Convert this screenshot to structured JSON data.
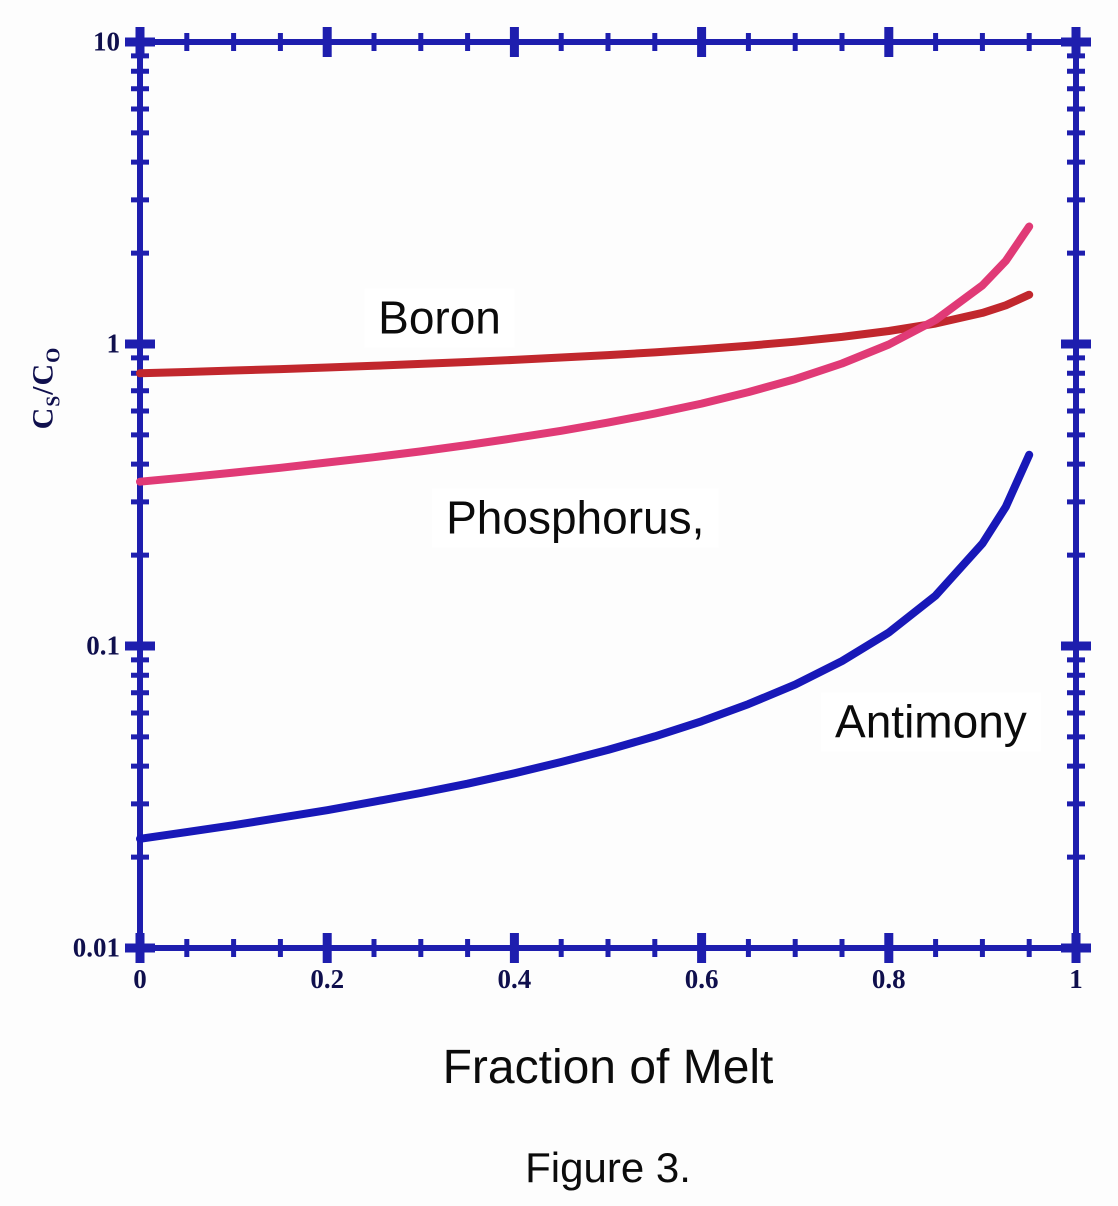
{
  "chart_data": {
    "type": "line",
    "title": "",
    "xlabel": "Fraction of Melt",
    "ylabel": "CS/CO",
    "ylabel_parts": {
      "base1": "C",
      "sub1": "S",
      "base2": "/C",
      "sub2": "O"
    },
    "caption": "Figure 3.",
    "x_scale": "linear",
    "y_scale": "log",
    "xlim": [
      0,
      1
    ],
    "ylim": [
      0.01,
      10
    ],
    "x_ticks": [
      {
        "v": 0,
        "label": "0"
      },
      {
        "v": 0.2,
        "label": "0.2"
      },
      {
        "v": 0.4,
        "label": "0.4"
      },
      {
        "v": 0.6,
        "label": "0.6"
      },
      {
        "v": 0.8,
        "label": "0.8"
      },
      {
        "v": 1,
        "label": "1"
      }
    ],
    "x_minor_step": 0.05,
    "y_ticks": [
      {
        "v": 10,
        "label": "10"
      },
      {
        "v": 1,
        "label": "1"
      },
      {
        "v": 0.1,
        "label": "0.1"
      },
      {
        "v": 0.01,
        "label": "0.01"
      }
    ],
    "grid": false,
    "axis_color": "#1e1eae",
    "tick_label_color": "#0f0f4d",
    "series": [
      {
        "name": "Boron",
        "color": "#c1272d",
        "points": [
          [
            0,
            0.8
          ],
          [
            0.05,
            0.808
          ],
          [
            0.1,
            0.817
          ],
          [
            0.15,
            0.826
          ],
          [
            0.2,
            0.836
          ],
          [
            0.25,
            0.847
          ],
          [
            0.3,
            0.859
          ],
          [
            0.35,
            0.872
          ],
          [
            0.4,
            0.886
          ],
          [
            0.45,
            0.902
          ],
          [
            0.5,
            0.919
          ],
          [
            0.55,
            0.938
          ],
          [
            0.6,
            0.961
          ],
          [
            0.65,
            0.987
          ],
          [
            0.7,
            1.018
          ],
          [
            0.75,
            1.056
          ],
          [
            0.8,
            1.104
          ],
          [
            0.85,
            1.169
          ],
          [
            0.9,
            1.268
          ],
          [
            0.925,
            1.343
          ],
          [
            0.95,
            1.456
          ]
        ]
      },
      {
        "name": "Phosphorus",
        "color": "#e03a76",
        "points": [
          [
            0,
            0.35
          ],
          [
            0.05,
            0.362
          ],
          [
            0.1,
            0.375
          ],
          [
            0.15,
            0.389
          ],
          [
            0.2,
            0.405
          ],
          [
            0.25,
            0.422
          ],
          [
            0.3,
            0.441
          ],
          [
            0.35,
            0.463
          ],
          [
            0.4,
            0.488
          ],
          [
            0.45,
            0.516
          ],
          [
            0.5,
            0.549
          ],
          [
            0.55,
            0.588
          ],
          [
            0.6,
            0.635
          ],
          [
            0.65,
            0.693
          ],
          [
            0.7,
            0.765
          ],
          [
            0.75,
            0.862
          ],
          [
            0.8,
            0.996
          ],
          [
            0.85,
            1.201
          ],
          [
            0.9,
            1.563
          ],
          [
            0.925,
            1.885
          ],
          [
            0.95,
            2.45
          ]
        ]
      },
      {
        "name": "Antimony",
        "color": "#1818b8",
        "points": [
          [
            0,
            0.023
          ],
          [
            0.05,
            0.0242
          ],
          [
            0.1,
            0.0255
          ],
          [
            0.15,
            0.027
          ],
          [
            0.2,
            0.0286
          ],
          [
            0.25,
            0.0305
          ],
          [
            0.3,
            0.0326
          ],
          [
            0.35,
            0.035
          ],
          [
            0.4,
            0.0379
          ],
          [
            0.45,
            0.0413
          ],
          [
            0.5,
            0.0453
          ],
          [
            0.55,
            0.0502
          ],
          [
            0.6,
            0.0563
          ],
          [
            0.65,
            0.0642
          ],
          [
            0.7,
            0.0745
          ],
          [
            0.75,
            0.0891
          ],
          [
            0.8,
            0.1108
          ],
          [
            0.85,
            0.1468
          ],
          [
            0.9,
            0.2183
          ],
          [
            0.925,
            0.289
          ],
          [
            0.95,
            0.4296
          ]
        ]
      }
    ],
    "annotations": [
      {
        "name": "boron",
        "text": "Boron",
        "x": 0.32,
        "y": 1.22
      },
      {
        "name": "phosphorus",
        "text": "Phosphorus,",
        "x": 0.465,
        "y": 0.265
      },
      {
        "name": "antimony",
        "text": "Antimony",
        "x": 0.845,
        "y": 0.056
      }
    ]
  }
}
